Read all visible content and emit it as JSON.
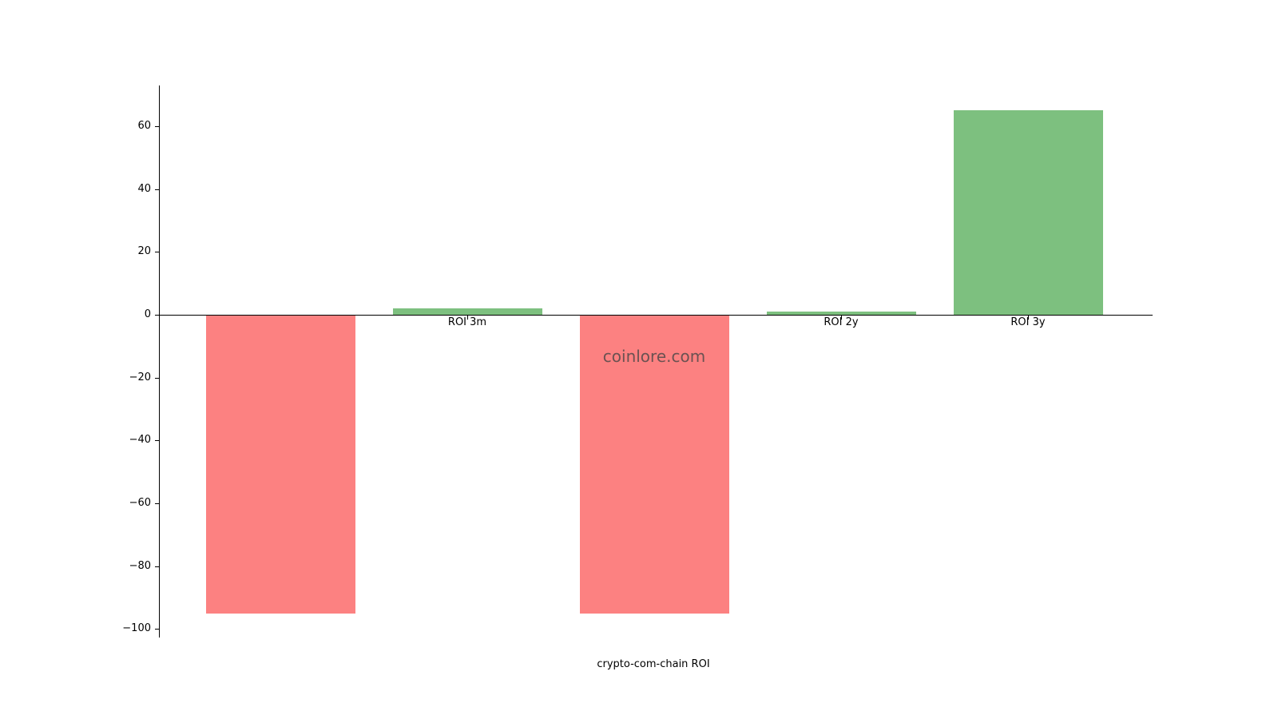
{
  "chart_data": {
    "type": "bar",
    "title": "crypto-com-chain ROI",
    "watermark": "coinlore.com",
    "categories": [
      "",
      "ROI 3m",
      "",
      "ROI 2y",
      "ROI 3y"
    ],
    "values": [
      -95,
      2,
      -95,
      1,
      65
    ],
    "xlabel": "crypto-com-chain ROI",
    "ylabel": "",
    "y_ticks": [
      60,
      40,
      20,
      0,
      -20,
      -40,
      -60,
      -80,
      -100
    ],
    "ylim": [
      -102,
      73
    ],
    "grid": "off",
    "legend": "none",
    "colors": {
      "positive_bar": "#7dc07f",
      "negative_bar": "#fc8181",
      "axis": "#000000",
      "tick_text": "#000000",
      "watermark_text": "#464646"
    }
  }
}
